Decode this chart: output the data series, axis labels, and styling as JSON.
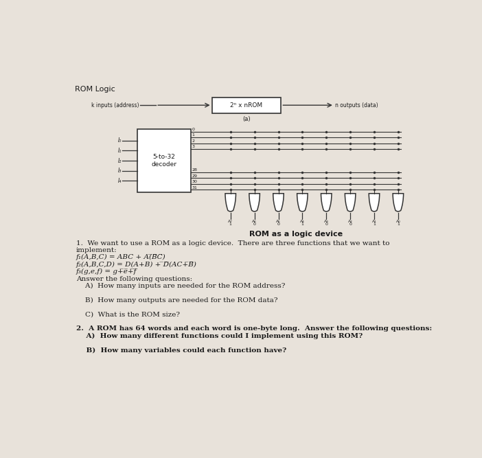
{
  "page_bg": "#e8e2da",
  "text_color": "#1a1a1a",
  "title": "ROM Logic",
  "diagram": {
    "top_box_label": "2ⁿ x nROM",
    "top_box_sublabel": "(a)",
    "left_label": "k inputs (address)",
    "right_label": "n outputs (data)",
    "decoder_label": "5-to-32\ndecoder",
    "decoder_inputs": [
      "I₀",
      "I₁",
      "I₂",
      "I₃",
      "I₄"
    ],
    "decoder_output_labels": [
      "0",
      "1",
      "2",
      "3",
      "28",
      "29",
      "30",
      "31"
    ],
    "or_gate_labels": [
      [
        "A₇",
        "1"
      ],
      [
        "A₆",
        "0"
      ],
      [
        "A₅",
        "0"
      ],
      [
        "A₄",
        "1"
      ],
      [
        "A₃",
        "0"
      ],
      [
        "A₂",
        "0"
      ],
      [
        "A₁",
        "1"
      ],
      [
        "A₀",
        "1"
      ]
    ],
    "caption": "ROM as a logic device"
  },
  "problem_lines": [
    {
      "text": "1.  We want to use a ROM as a logic device.  There are three functions that we want to",
      "x": 30,
      "style": "normal"
    },
    {
      "text": "implement:",
      "x": 30,
      "style": "normal"
    },
    {
      "text": "f₁(A,B,C) = ABC + A(̅B̅C̅)",
      "x": 30,
      "style": "italic"
    },
    {
      "text": "f₂(A,B,C,D) = D(A+B) + ̅D̅(AC+̅B̅)",
      "x": 30,
      "style": "italic"
    },
    {
      "text": "f₃(g,e,f) = g+̅e̅+̅f̅",
      "x": 30,
      "style": "italic"
    },
    {
      "text": "Answer the following questions:",
      "x": 30,
      "style": "normal"
    },
    {
      "text": "    A)  How many inputs are needed for the ROM address?",
      "x": 30,
      "style": "normal"
    },
    {
      "text": "",
      "x": 30,
      "style": "normal"
    },
    {
      "text": "    B)  How many outputs are needed for the ROM data?",
      "x": 30,
      "style": "normal"
    },
    {
      "text": "",
      "x": 30,
      "style": "normal"
    },
    {
      "text": "    C)  What is the ROM size?",
      "x": 30,
      "style": "normal"
    },
    {
      "text": "",
      "x": 30,
      "style": "normal"
    },
    {
      "text": "2.  A ROM has 64 words and each word is one-byte long.  Answer the following questions:",
      "x": 30,
      "style": "bold"
    },
    {
      "text": "    A)  How many different functions could I implement using this ROM?",
      "x": 30,
      "style": "bold"
    },
    {
      "text": "",
      "x": 30,
      "style": "normal"
    },
    {
      "text": "    B)  How many variables could each function have?",
      "x": 30,
      "style": "bold"
    }
  ]
}
